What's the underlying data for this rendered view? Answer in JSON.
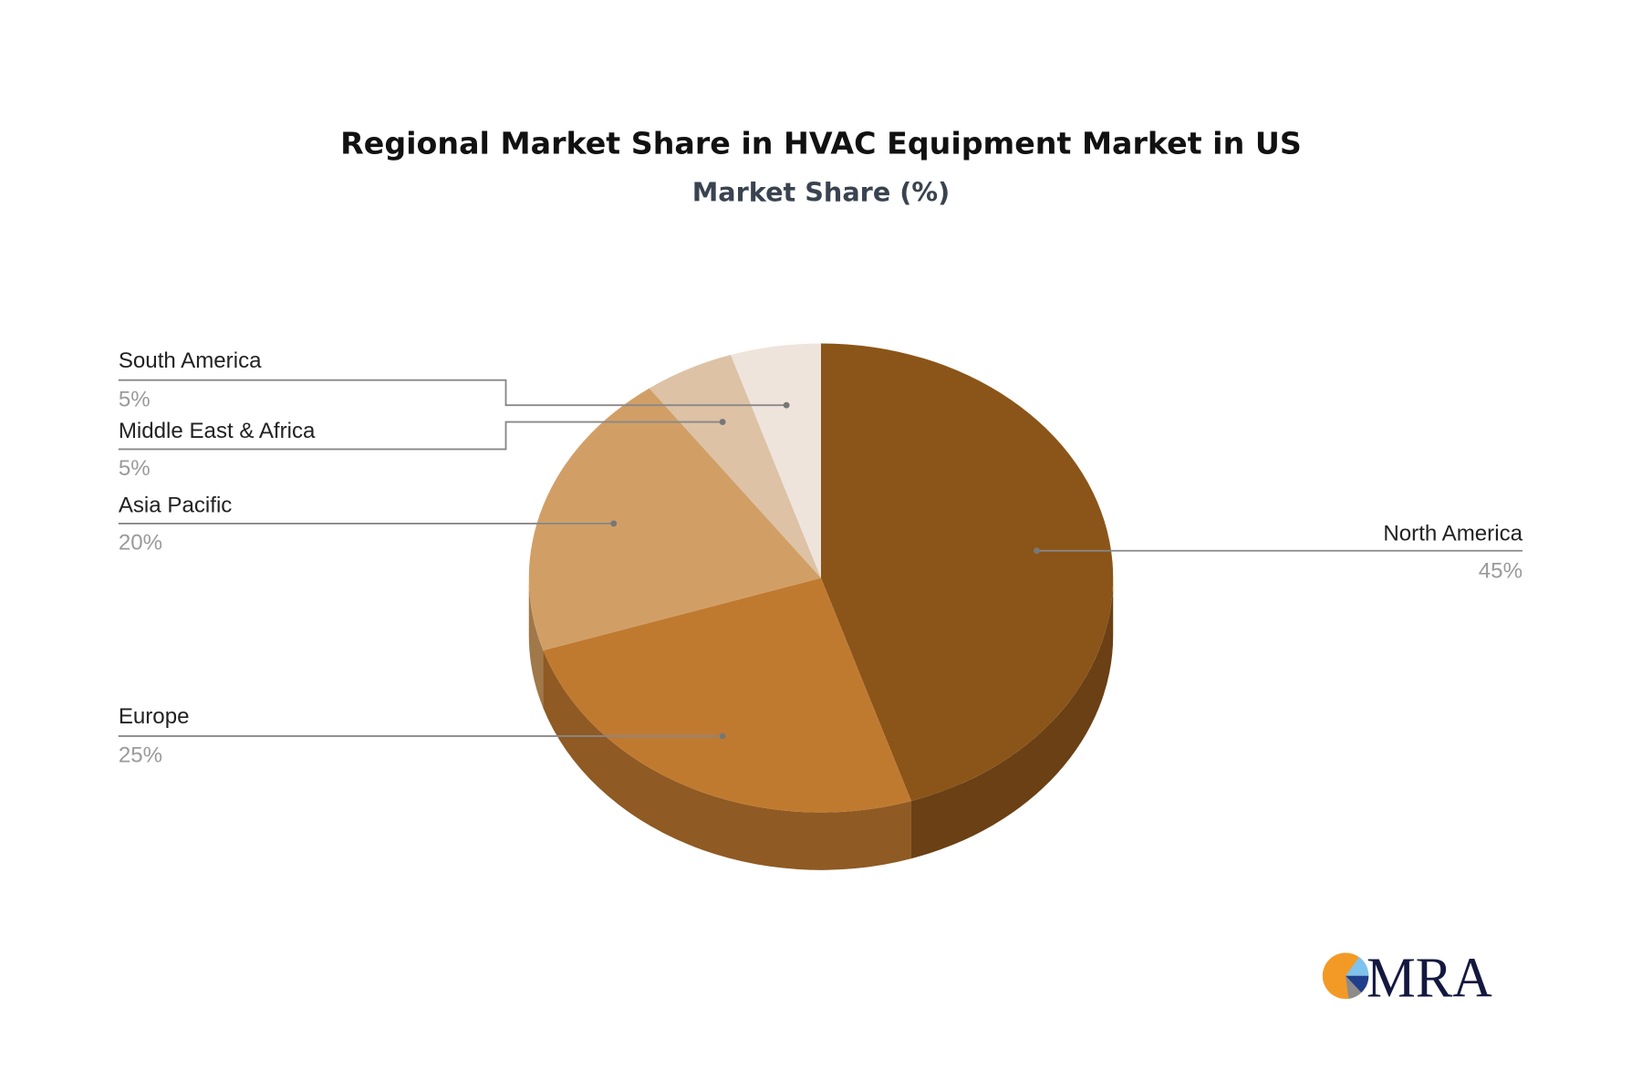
{
  "chart_data": {
    "type": "pie",
    "style": "3d",
    "title": "Regional Market Share in HVAC Equipment Market in US",
    "subtitle": "Market Share (%)",
    "slices": [
      {
        "label": "North America",
        "value": 45,
        "display": "45%",
        "color": "#8B5519",
        "side_color": "#6A4014"
      },
      {
        "label": "Europe",
        "value": 25,
        "display": "25%",
        "color": "#C07A30",
        "side_color": "#8F5A23"
      },
      {
        "label": "Asia Pacific",
        "value": 20,
        "display": "20%",
        "color": "#D19F66",
        "side_color": "#A07849"
      },
      {
        "label": "Middle East & Africa",
        "value": 5,
        "display": "5%",
        "color": "#DDC2A5",
        "side_color": "#B39A80"
      },
      {
        "label": "South America",
        "value": 5,
        "display": "5%",
        "color": "#EEE4DC",
        "side_color": "#C8BCB2"
      }
    ]
  },
  "logo": {
    "text": "MRA",
    "colors": {
      "orange": "#F39A26",
      "navy": "#14183F",
      "light_blue": "#7EC3EE",
      "blue": "#1F3E8C",
      "gray": "#8C8C8C"
    }
  }
}
